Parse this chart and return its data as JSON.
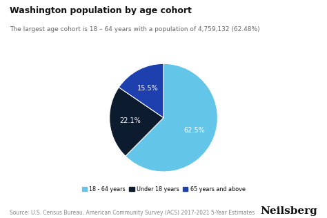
{
  "title": "Washington population by age cohort",
  "subtitle": "The largest age cohort is 18 – 64 years with a population of 4,759,132 (62.48%)",
  "labels": [
    "18 - 64 years",
    "Under 18 years",
    "65 years and above"
  ],
  "values": [
    62.5,
    22.1,
    15.5
  ],
  "colors": [
    "#63c5e8",
    "#0d1b2e",
    "#1e40af"
  ],
  "pct_labels": [
    "62.5%",
    "22.1%",
    "15.5%"
  ],
  "source": "Source: U.S. Census Bureau, American Community Survey (ACS) 2017-2021 5-Year Estimates",
  "brand": "Neilsberg",
  "background_color": "#ffffff",
  "title_fontsize": 9,
  "subtitle_fontsize": 6.5,
  "source_fontsize": 5.5,
  "brand_fontsize": 11
}
